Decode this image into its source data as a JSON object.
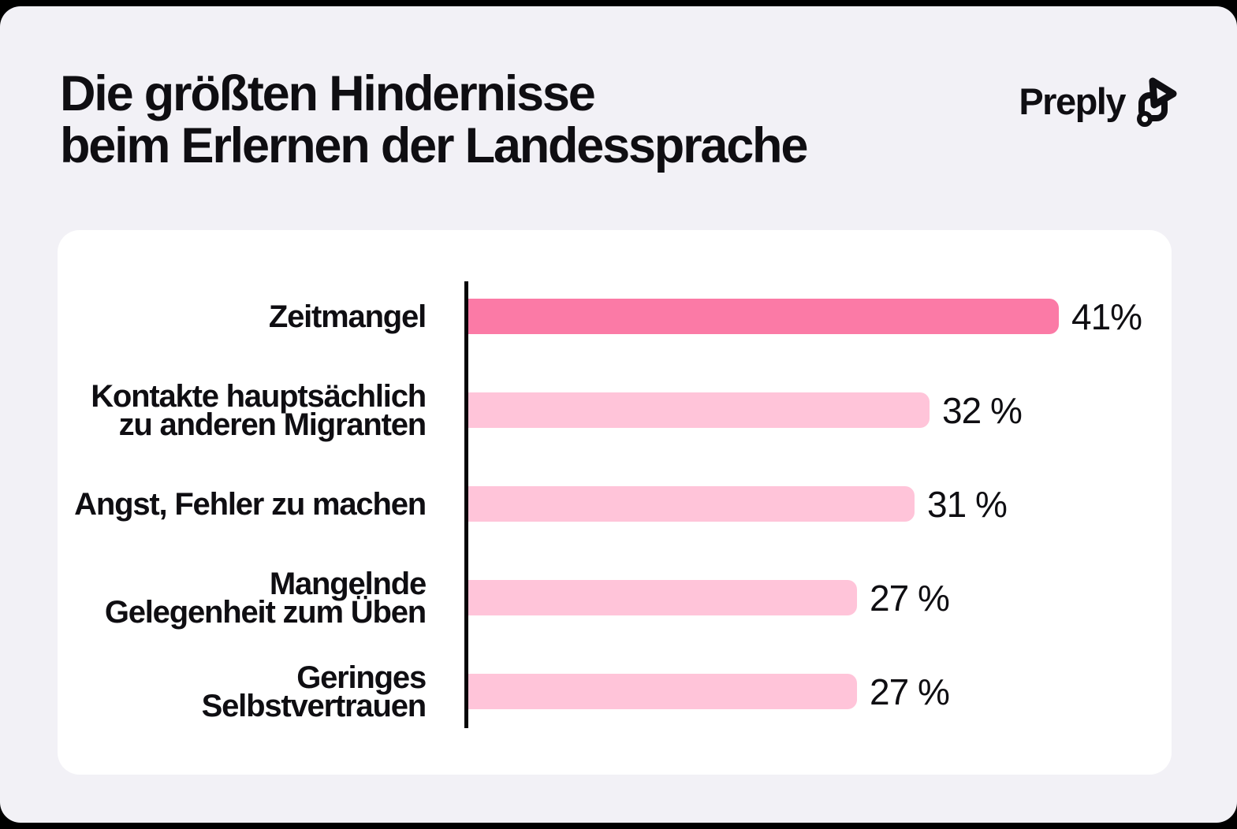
{
  "theme": {
    "frame": "#000000",
    "background": "#F2F1F6",
    "card": "#FFFFFF",
    "ink": "#0F0E12",
    "bar_accent": "#FB7AA6",
    "bar_light": "#FFC4D9"
  },
  "header": {
    "title": "Die größten Hindernisse\nbeim Erlernen der Landessprache",
    "brand": {
      "wordmark": "Preply",
      "logo_icon": "preply-speech-bubble-play-icon"
    }
  },
  "chart_data": {
    "type": "bar",
    "orientation": "horizontal",
    "title": "Die größten Hindernisse beim Erlernen der Landessprache",
    "categories": [
      "Zeitmangel",
      "Kontakte hauptsächlich zu anderen Migranten",
      "Angst, Fehler zu machen",
      "Mangelnde Gelegenheit zum Üben",
      "Geringes Selbstvertrauen"
    ],
    "values": [
      41,
      32,
      31,
      27,
      27
    ],
    "value_labels": [
      "41%",
      "32 %",
      "31 %",
      "27 %",
      "27 %"
    ],
    "xlabel": "",
    "ylabel": "",
    "xlim": [
      0,
      45
    ],
    "grid": false,
    "legend": false,
    "highlight_index": 0,
    "bar_colors": [
      "#FB7AA6",
      "#FFC4D9",
      "#FFC4D9",
      "#FFC4D9",
      "#FFC4D9"
    ],
    "rows": [
      {
        "label": "Zeitmangel",
        "value": 41,
        "value_label": "41%"
      },
      {
        "label": "Kontakte hauptsächlich\nzu anderen Migranten",
        "value": 32,
        "value_label": "32 %"
      },
      {
        "label": "Angst, Fehler zu machen",
        "value": 31,
        "value_label": "31 %"
      },
      {
        "label": "Mangelnde\nGelegenheit zum Üben",
        "value": 27,
        "value_label": "27 %"
      },
      {
        "label": "Geringes\nSelbstvertrauen",
        "value": 27,
        "value_label": "27 %"
      }
    ]
  }
}
